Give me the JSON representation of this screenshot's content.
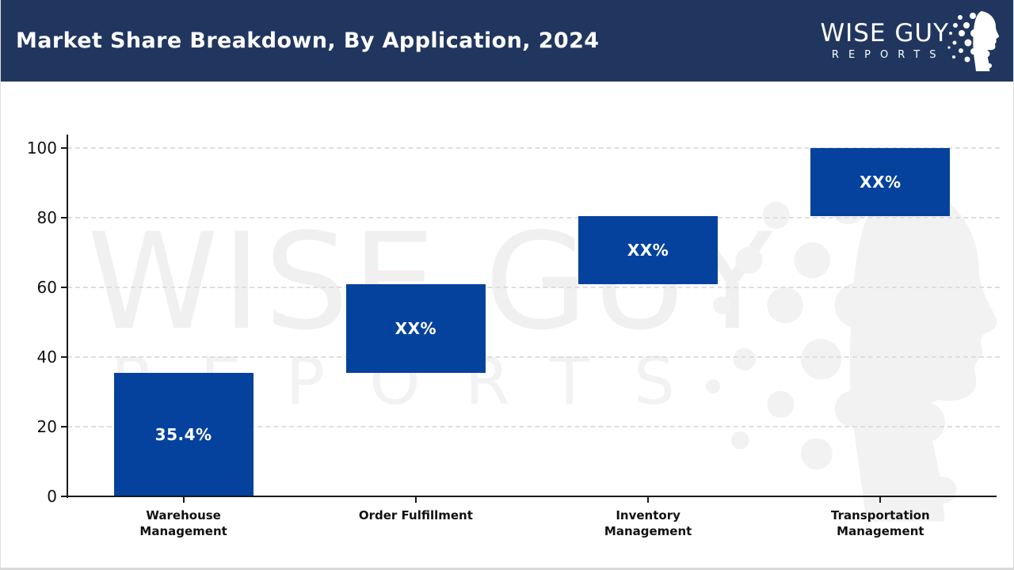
{
  "header": {
    "title": "Market Share Breakdown, By Application, 2024",
    "logo": {
      "line1": "WISE GUY",
      "line2": "REPORTS"
    }
  },
  "watermark": {
    "line1": "WISE GUY",
    "line2": "REPORTS"
  },
  "colors": {
    "header_bg": "#21365f",
    "bar": "#05429d",
    "bar_label": "#ffffff",
    "grid": "#dedede",
    "axis": "#1a1a1a",
    "watermark": "#f0f0f0"
  },
  "chart_data": {
    "type": "bar",
    "subtype": "waterfall",
    "title": "Market Share Breakdown, By Application, 2024",
    "xlabel": "",
    "ylabel": "",
    "ylim": [
      0,
      100
    ],
    "yticks": [
      0,
      20,
      40,
      60,
      80,
      100
    ],
    "grid": "horizontal-dashed",
    "legend": "none",
    "categories": [
      "Warehouse Management",
      "Order Fulfillment",
      "Inventory Management",
      "Transportation Management"
    ],
    "bars": [
      {
        "category_lines": [
          "Warehouse",
          "Management"
        ],
        "start": 0,
        "end": 35.4,
        "label": "35.4%"
      },
      {
        "category_lines": [
          "Order Fulfillment"
        ],
        "start": 35.4,
        "end": 60.8,
        "label": "XX%"
      },
      {
        "category_lines": [
          "Inventory",
          "Management"
        ],
        "start": 60.8,
        "end": 80.5,
        "label": "XX%"
      },
      {
        "category_lines": [
          "Transportation",
          "Management"
        ],
        "start": 80.5,
        "end": 100,
        "label": "XX%"
      }
    ]
  }
}
